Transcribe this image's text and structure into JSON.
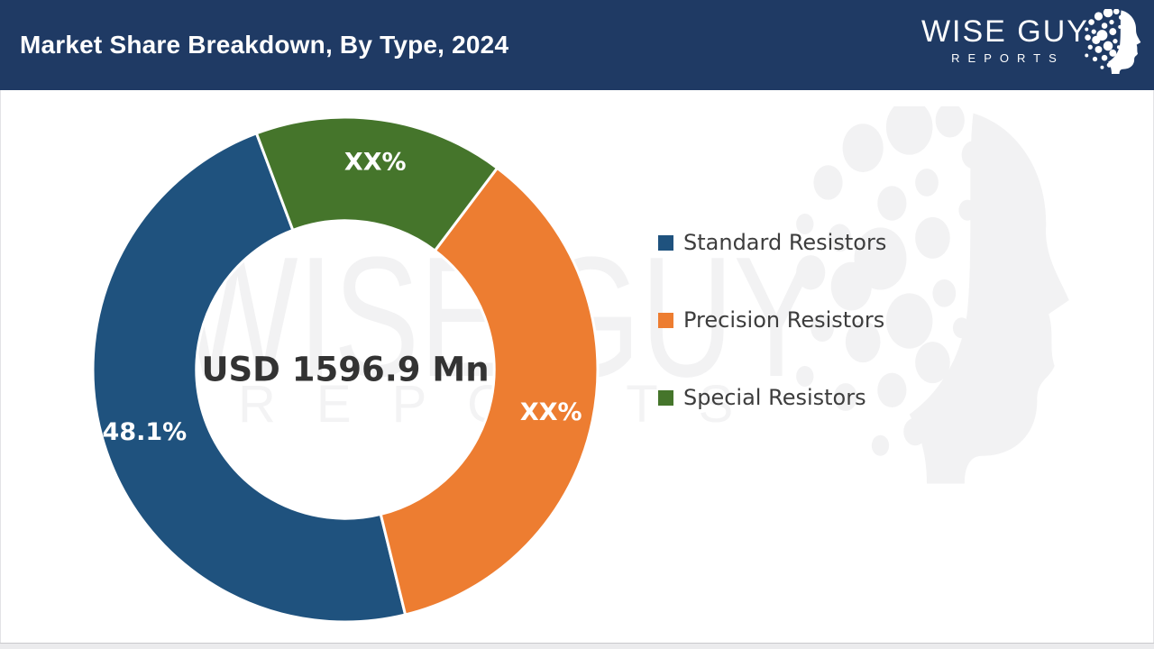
{
  "header": {
    "title": "Market Share Breakdown, By Type, 2024",
    "bg_color": "#1f3a64",
    "logo": {
      "line1": "WISE GUY",
      "line2": "REPORTS"
    }
  },
  "watermark": {
    "line1": "WISE GUY",
    "line2": "REPORTS"
  },
  "chart_data": {
    "type": "donut",
    "title": "Market Share Breakdown, By Type, 2024",
    "center_label": "USD 1596.9 Mn",
    "start_angle_deg": 110.6,
    "direction": "counterclockwise",
    "inner_radius_ratio": 0.59,
    "legend_position": "right",
    "segments": [
      {
        "label": "Standard Resistors",
        "display_value": "48.1%",
        "value_pct": 48.1,
        "color": "#1f527e"
      },
      {
        "label": "Precision Resistors",
        "display_value": "XX%",
        "value_pct": 35.9,
        "color": "#ed7d31"
      },
      {
        "label": "Special Resistors",
        "display_value": "XX%",
        "value_pct": 16.0,
        "color": "#45752b"
      }
    ]
  }
}
